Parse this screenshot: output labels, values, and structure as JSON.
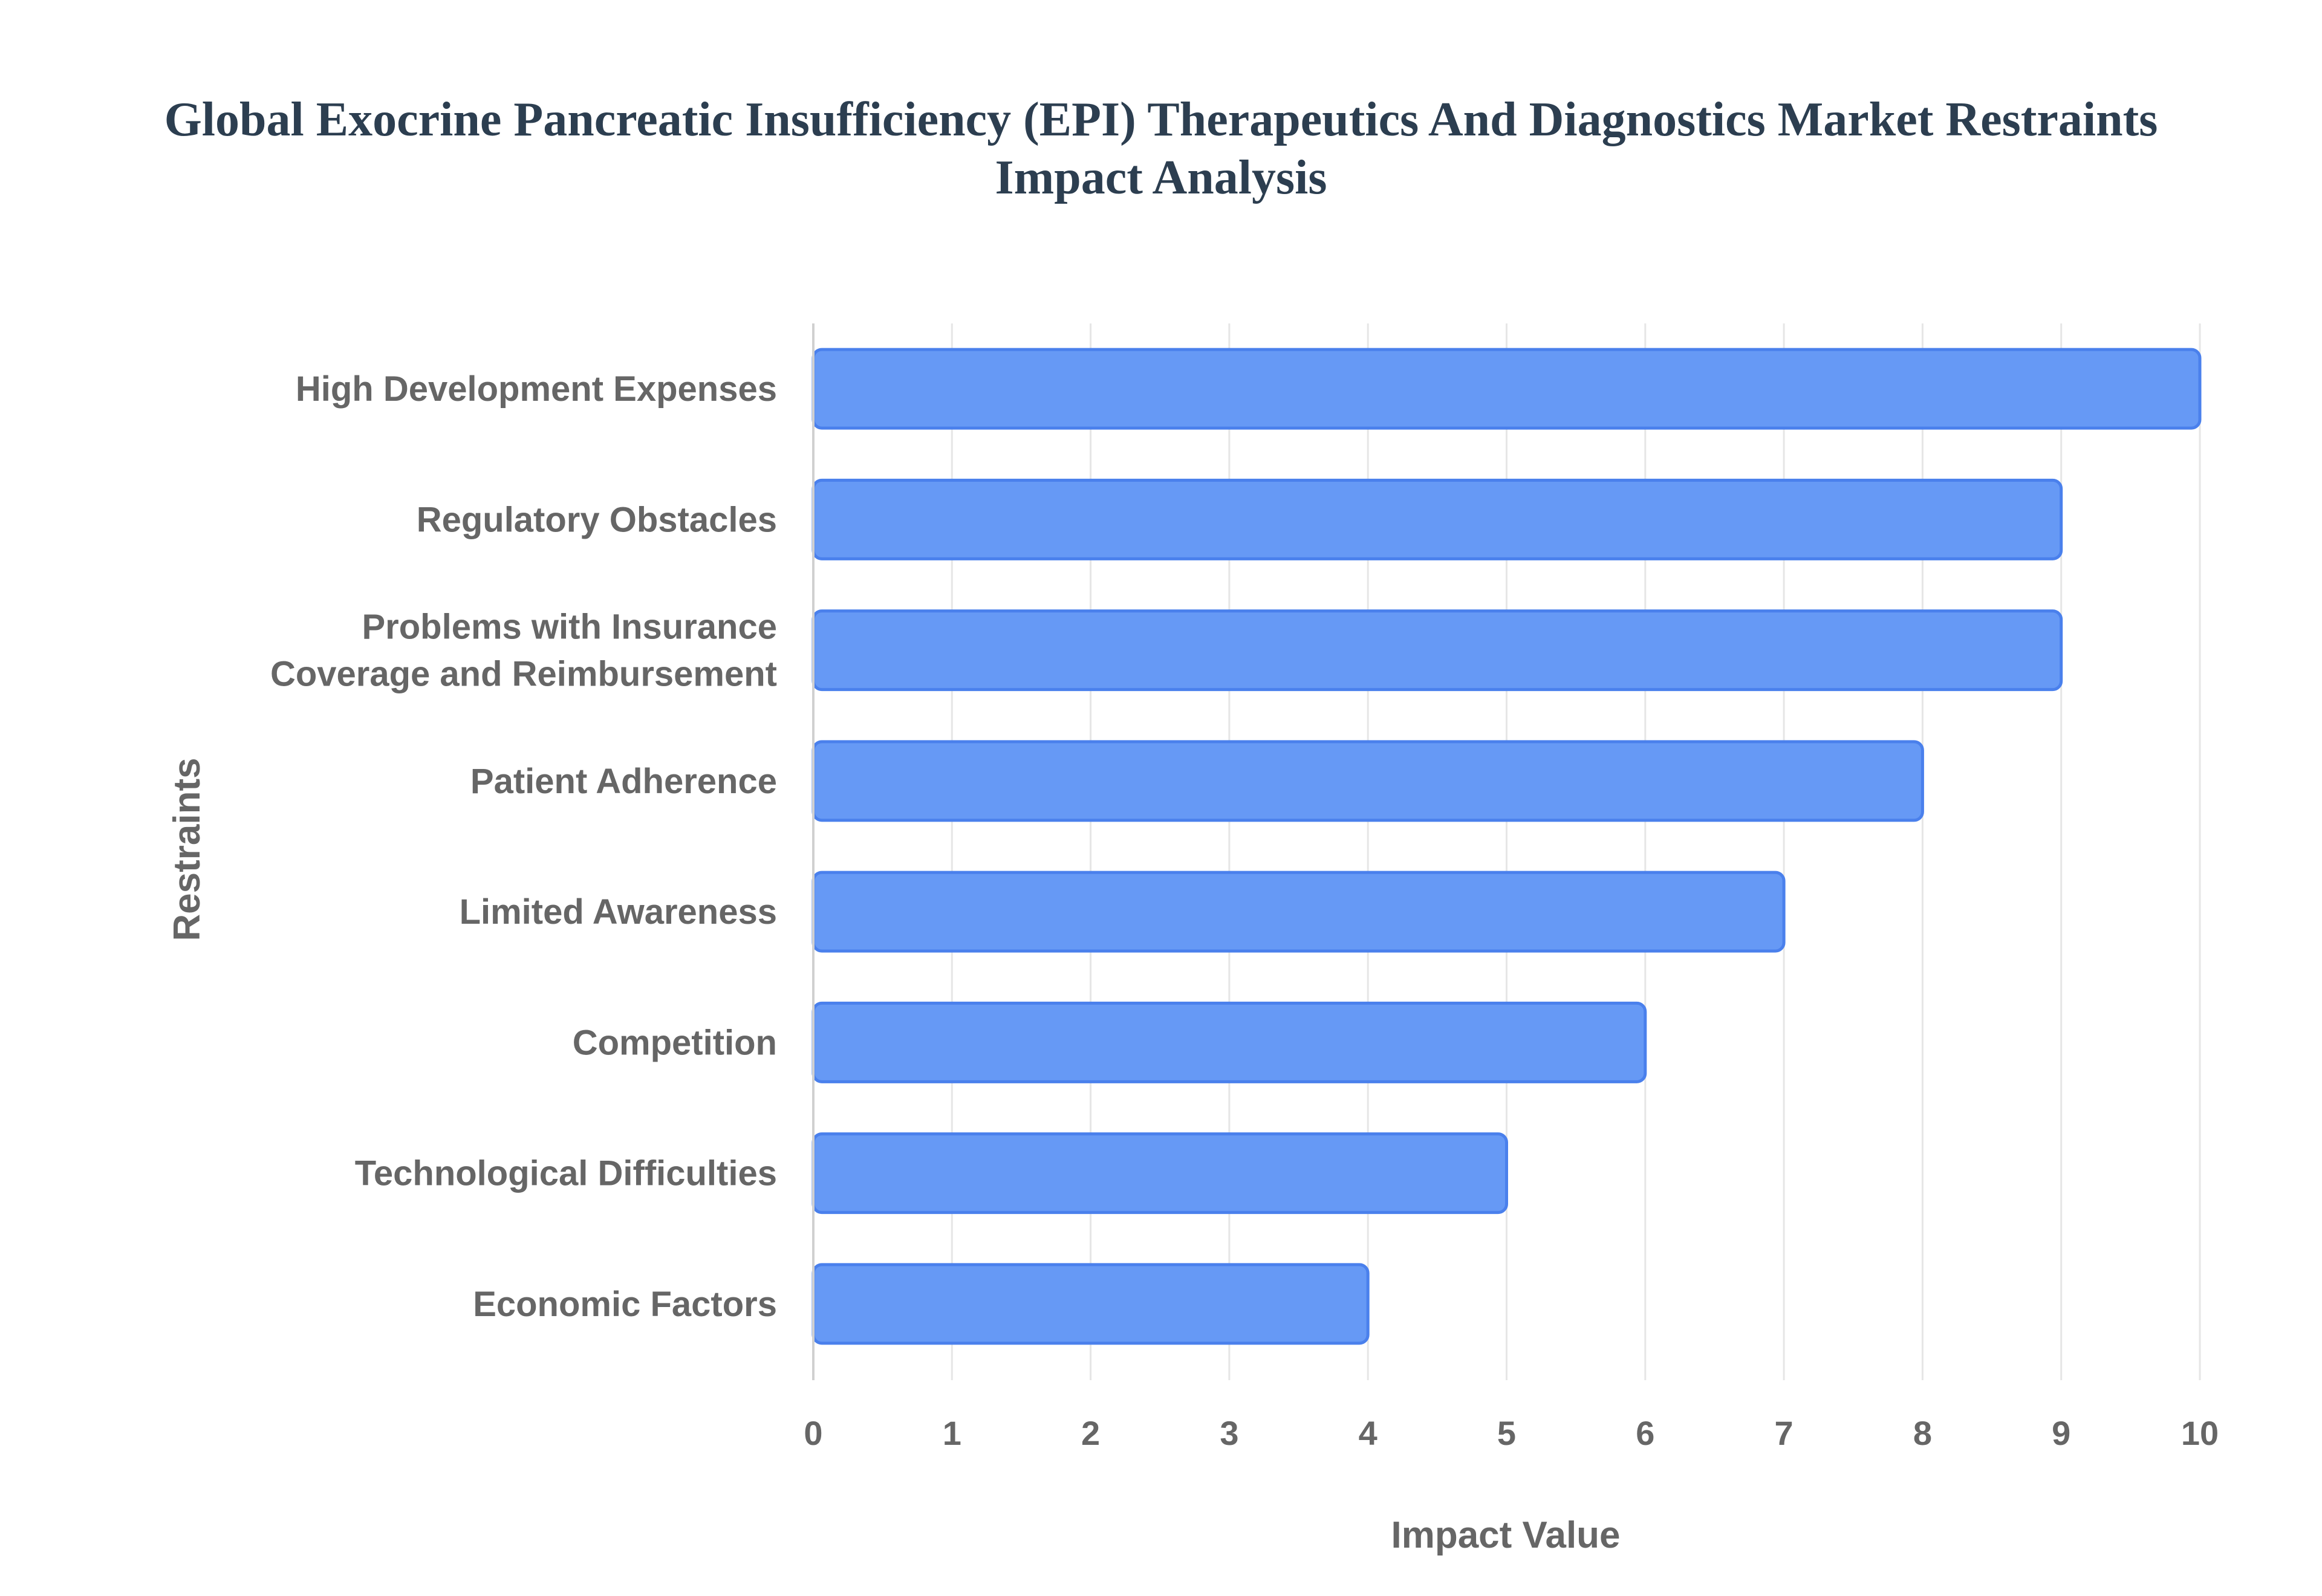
{
  "chart_data": {
    "type": "bar",
    "orientation": "horizontal",
    "title_lines": [
      "Global Exocrine Pancreatic Insufficiency (EPI) Therapeutics And Diagnostics Market Restraints",
      "Impact Analysis"
    ],
    "xlabel": "Impact Value",
    "ylabel": "Restraints",
    "categories": [
      [
        "High Development Expenses"
      ],
      [
        "Regulatory Obstacles"
      ],
      [
        "Problems with Insurance",
        "Coverage and Reimbursement"
      ],
      [
        "Patient Adherence"
      ],
      [
        "Limited Awareness"
      ],
      [
        "Competition"
      ],
      [
        "Technological Difficulties"
      ],
      [
        "Economic Factors"
      ]
    ],
    "values": [
      10,
      9,
      9,
      8,
      7,
      6,
      5,
      4
    ],
    "xlim": [
      0,
      10
    ],
    "xticks": [
      0,
      1,
      2,
      3,
      4,
      5,
      6,
      7,
      8,
      9,
      10
    ],
    "grid": true,
    "legend": "none",
    "colors": {
      "bar_fill": "#6699f5",
      "bar_stroke": "#4a80ec",
      "grid": "#e6e6e6",
      "axis": "#d0d0d0",
      "text": "#666666",
      "title": "#2c3e50"
    }
  }
}
